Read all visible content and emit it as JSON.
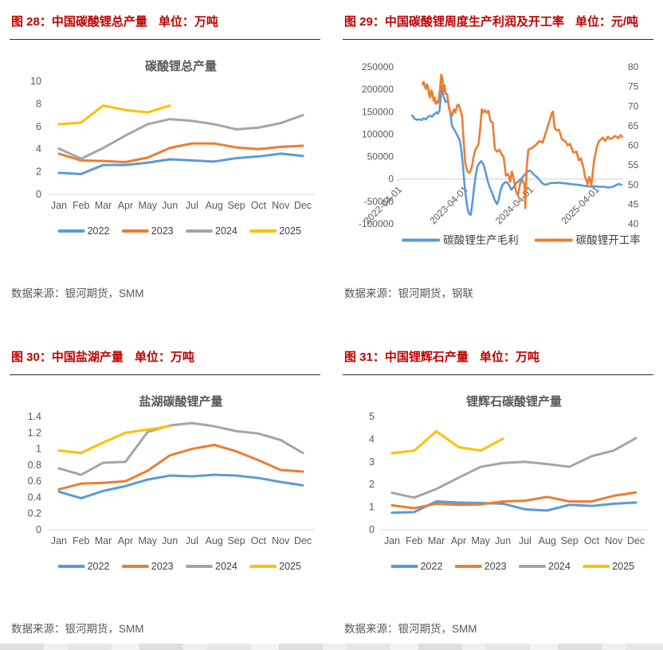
{
  "colors": {
    "accent_red": "#C00000",
    "axis_text": "#595959",
    "axis_line": "#D9D9D9",
    "legend_text": "#404040",
    "series": {
      "2022": "#5B9BD5",
      "2023": "#ED7D31",
      "2024": "#A5A5A5",
      "2025": "#FFC000",
      "profit": "#5B9BD5",
      "rate": "#ED7D31"
    }
  },
  "panels": [
    {
      "heading": "图 28：中国碳酸锂总产量",
      "unit": "单位：万吨",
      "source": "数据来源：银河期货，SMM"
    },
    {
      "heading": "图 29：中国碳酸锂周度生产利润及开工率",
      "unit": "单位：元/吨",
      "source": "数据来源：银河期货，钢联"
    },
    {
      "heading": "图 30：中国盐湖产量",
      "unit": "单位：万吨",
      "source": "数据来源：银河期货，SMM"
    },
    {
      "heading": "图 31：中国锂辉石产量",
      "unit": "单位：万吨",
      "source": "数据来源：银河期货，SMM"
    }
  ],
  "chart_data": [
    {
      "type": "line",
      "title": "碳酸锂总产量",
      "categories": [
        "Jan",
        "Feb",
        "Mar",
        "Apr",
        "May",
        "Jun",
        "Jul",
        "Aug",
        "Sep",
        "Oct",
        "Nov",
        "Dec"
      ],
      "ylim": [
        0,
        10
      ],
      "ytick_step": 2,
      "grid": false,
      "legend_position": "bottom",
      "series": [
        {
          "name": "2022",
          "color_key": "2022",
          "values": [
            1.9,
            1.8,
            2.6,
            2.6,
            2.8,
            3.1,
            3.0,
            2.9,
            3.2,
            3.35,
            3.6,
            3.4
          ]
        },
        {
          "name": "2023",
          "color_key": "2023",
          "values": [
            3.6,
            3.0,
            2.95,
            2.85,
            3.25,
            4.1,
            4.5,
            4.5,
            4.15,
            4.0,
            4.2,
            4.3
          ]
        },
        {
          "name": "2024",
          "color_key": "2024",
          "values": [
            4.05,
            3.15,
            4.1,
            5.2,
            6.2,
            6.65,
            6.5,
            6.2,
            5.75,
            5.9,
            6.3,
            7.0
          ]
        },
        {
          "name": "2025",
          "color_key": "2025",
          "values": [
            6.2,
            6.35,
            7.85,
            7.45,
            7.25,
            7.85
          ]
        }
      ]
    },
    {
      "type": "line",
      "dual_axis": true,
      "left_ylim": [
        -100000,
        250000
      ],
      "left_step": 50000,
      "right_ylim": [
        40,
        80
      ],
      "right_step": 5,
      "x_tick_labels": [
        "2022-04-01",
        "2023-04-01",
        "2024-04-01",
        "2025-04-01"
      ],
      "x_tick_months": [
        0,
        12,
        24,
        36
      ],
      "x_range_months": [
        0,
        41
      ],
      "grid": false,
      "legend_position": "bottom",
      "series": [
        {
          "name": "碳酸锂生产毛利",
          "axis": "left",
          "color_key": "profit",
          "points": [
            [
              2.5,
              142000
            ],
            [
              3.0,
              134000
            ],
            [
              3.4,
              132000
            ],
            [
              3.8,
              133000
            ],
            [
              4.2,
              131500
            ],
            [
              4.6,
              135500
            ],
            [
              5.0,
              133000
            ],
            [
              5.4,
              138500
            ],
            [
              5.8,
              141500
            ],
            [
              6.1,
              139000
            ],
            [
              6.5,
              144000
            ],
            [
              6.9,
              148500
            ],
            [
              7.2,
              146000
            ],
            [
              7.5,
              153000
            ],
            [
              7.9,
              207000
            ],
            [
              8.2,
              186000
            ],
            [
              8.6,
              172000
            ],
            [
              9.0,
              175000
            ],
            [
              9.4,
              152000
            ],
            [
              9.8,
              118000
            ],
            [
              10.3,
              108000
            ],
            [
              10.8,
              96000
            ],
            [
              11.2,
              86000
            ],
            [
              11.5,
              62000
            ],
            [
              11.8,
              25000
            ],
            [
              12.0,
              -5000
            ],
            [
              12.3,
              -40000
            ],
            [
              12.6,
              -65000
            ],
            [
              12.9,
              -78000
            ],
            [
              13.2,
              -80000
            ],
            [
              13.5,
              -52000
            ],
            [
              13.8,
              -20000
            ],
            [
              14.1,
              8000
            ],
            [
              14.4,
              28000
            ],
            [
              14.8,
              36000
            ],
            [
              15.1,
              40000
            ],
            [
              15.5,
              33000
            ],
            [
              15.9,
              15000
            ],
            [
              16.3,
              -5000
            ],
            [
              16.7,
              -20000
            ],
            [
              17.2,
              -35000
            ],
            [
              17.6,
              -48000
            ],
            [
              18.0,
              -56000
            ],
            [
              18.3,
              -46000
            ],
            [
              18.6,
              -26000
            ],
            [
              19.0,
              -13000
            ],
            [
              19.4,
              -8000
            ],
            [
              19.8,
              -7000
            ],
            [
              20.2,
              -14000
            ],
            [
              20.6,
              -24000
            ],
            [
              21.0,
              -18000
            ],
            [
              21.5,
              -9000
            ],
            [
              22.0,
              -4000
            ],
            [
              22.5,
              2000
            ],
            [
              23.0,
              9000
            ],
            [
              23.5,
              16000
            ],
            [
              24.0,
              19000
            ],
            [
              24.4,
              14000
            ],
            [
              24.8,
              9000
            ],
            [
              25.3,
              4000
            ],
            [
              25.8,
              -3000
            ],
            [
              26.3,
              -10000
            ],
            [
              26.8,
              -13000
            ],
            [
              27.3,
              -11000
            ],
            [
              27.8,
              -9000
            ],
            [
              28.3,
              -8500
            ],
            [
              28.8,
              -9000
            ],
            [
              29.3,
              -8000
            ],
            [
              29.8,
              -9000
            ],
            [
              30.3,
              -10000
            ],
            [
              30.8,
              -10000
            ],
            [
              31.3,
              -11000
            ],
            [
              31.8,
              -12000
            ],
            [
              32.3,
              -12500
            ],
            [
              32.8,
              -13000
            ],
            [
              33.3,
              -14000
            ],
            [
              33.8,
              -15000
            ],
            [
              34.3,
              -16000
            ],
            [
              34.8,
              -16500
            ],
            [
              35.3,
              -17000
            ],
            [
              35.8,
              -16000
            ],
            [
              36.3,
              -17000
            ],
            [
              36.8,
              -17500
            ],
            [
              37.3,
              -17000
            ],
            [
              37.8,
              -18000
            ],
            [
              38.3,
              -19000
            ],
            [
              38.8,
              -18000
            ],
            [
              39.3,
              -16500
            ],
            [
              39.8,
              -13000
            ],
            [
              40.3,
              -11000
            ],
            [
              40.7,
              -13000
            ]
          ]
        },
        {
          "name": "碳酸锂开工率",
          "axis": "right",
          "color_key": "rate",
          "points": [
            [
              4.4,
              75.6
            ],
            [
              4.6,
              76.2
            ],
            [
              4.8,
              75.0
            ],
            [
              5.0,
              74.4
            ],
            [
              5.2,
              75.6
            ],
            [
              5.4,
              74.8
            ],
            [
              5.6,
              73.0
            ],
            [
              5.8,
              72.2
            ],
            [
              6.0,
              74.0
            ],
            [
              6.2,
              73.4
            ],
            [
              6.4,
              71.4
            ],
            [
              6.6,
              72.2
            ],
            [
              6.8,
              70.6
            ],
            [
              7.0,
              71.2
            ],
            [
              7.2,
              70.8
            ],
            [
              7.4,
              72.4
            ],
            [
              7.6,
              74.6
            ],
            [
              7.8,
              78.0
            ],
            [
              8.0,
              77.2
            ],
            [
              8.2,
              73.8
            ],
            [
              8.4,
              75.4
            ],
            [
              8.6,
              73.2
            ],
            [
              8.9,
              73.0
            ],
            [
              9.2,
              69.6
            ],
            [
              9.5,
              68.4
            ],
            [
              9.8,
              67.6
            ],
            [
              10.1,
              69.2
            ],
            [
              10.4,
              68.4
            ],
            [
              10.7,
              70.2
            ],
            [
              11.0,
              70.4
            ],
            [
              11.3,
              69.0
            ],
            [
              11.6,
              67.6
            ],
            [
              11.9,
              61.0
            ],
            [
              12.2,
              55.5
            ],
            [
              12.5,
              53.7
            ],
            [
              12.8,
              53.0
            ],
            [
              13.1,
              53.3
            ],
            [
              13.4,
              54.5
            ],
            [
              13.7,
              57.0
            ],
            [
              14.0,
              58.8
            ],
            [
              14.3,
              59.5
            ],
            [
              14.6,
              60.2
            ],
            [
              14.9,
              64.0
            ],
            [
              15.2,
              69.2
            ],
            [
              15.5,
              68.4
            ],
            [
              15.8,
              69.0
            ],
            [
              16.1,
              68.3
            ],
            [
              16.4,
              68.8
            ],
            [
              16.8,
              66.2
            ],
            [
              17.2,
              65.8
            ],
            [
              17.6,
              59.0
            ],
            [
              18.0,
              58.4
            ],
            [
              18.4,
              58.9
            ],
            [
              18.8,
              57.8
            ],
            [
              19.2,
              57.0
            ],
            [
              19.6,
              52.3
            ],
            [
              20.0,
              52.7
            ],
            [
              20.4,
              50.7
            ],
            [
              20.7,
              53.3
            ],
            [
              21.0,
              51.8
            ],
            [
              21.4,
              48.5
            ],
            [
              21.8,
              47.2
            ],
            [
              22.2,
              50.3
            ],
            [
              22.6,
              51.2
            ],
            [
              23.0,
              50.0
            ],
            [
              23.15,
              44.0
            ],
            [
              23.4,
              54.4
            ],
            [
              23.7,
              58.9
            ],
            [
              24.3,
              59.3
            ],
            [
              25.0,
              60.0
            ],
            [
              25.7,
              61.1
            ],
            [
              26.3,
              60.7
            ],
            [
              26.9,
              63.3
            ],
            [
              27.5,
              66.0
            ],
            [
              28.0,
              68.3
            ],
            [
              28.2,
              68.6
            ],
            [
              28.5,
              64.4
            ],
            [
              28.9,
              63.8
            ],
            [
              29.3,
              64.0
            ],
            [
              29.8,
              61.6
            ],
            [
              30.4,
              61.1
            ],
            [
              30.9,
              60.0
            ],
            [
              31.3,
              60.4
            ],
            [
              31.9,
              58.2
            ],
            [
              32.5,
              58.4
            ],
            [
              32.9,
              56.2
            ],
            [
              33.3,
              56.7
            ],
            [
              33.8,
              54.0
            ],
            [
              34.0,
              52.2
            ],
            [
              34.3,
              51.1
            ],
            [
              34.5,
              50.0
            ],
            [
              34.8,
              52.0
            ],
            [
              35.2,
              49.8
            ],
            [
              35.7,
              56.2
            ],
            [
              36.2,
              59.6
            ],
            [
              36.6,
              61.1
            ],
            [
              37.0,
              61.6
            ],
            [
              37.3,
              62.0
            ],
            [
              37.7,
              61.1
            ],
            [
              38.2,
              62.2
            ],
            [
              38.7,
              61.6
            ],
            [
              39.1,
              62.0
            ],
            [
              39.6,
              62.4
            ],
            [
              40.1,
              61.8
            ],
            [
              40.5,
              62.6
            ],
            [
              40.8,
              62.2
            ]
          ]
        }
      ]
    },
    {
      "type": "line",
      "title": "盐湖碳酸锂产量",
      "categories": [
        "Jan",
        "Feb",
        "Mar",
        "Apr",
        "May",
        "Jun",
        "Jul",
        "Aug",
        "Sep",
        "Oct",
        "Nov",
        "Dec"
      ],
      "ylim": [
        0,
        1.4
      ],
      "ytick_step": 0.2,
      "grid": false,
      "legend_position": "bottom",
      "series": [
        {
          "name": "2022",
          "color_key": "2022",
          "values": [
            0.47,
            0.39,
            0.48,
            0.54,
            0.62,
            0.67,
            0.66,
            0.68,
            0.67,
            0.64,
            0.59,
            0.55
          ]
        },
        {
          "name": "2023",
          "color_key": "2023",
          "values": [
            0.5,
            0.57,
            0.58,
            0.6,
            0.73,
            0.92,
            1.0,
            1.05,
            0.97,
            0.86,
            0.74,
            0.72
          ]
        },
        {
          "name": "2024",
          "color_key": "2024",
          "values": [
            0.76,
            0.68,
            0.83,
            0.84,
            1.21,
            1.29,
            1.32,
            1.28,
            1.22,
            1.19,
            1.11,
            0.95
          ]
        },
        {
          "name": "2025",
          "color_key": "2025",
          "values": [
            0.98,
            0.95,
            1.08,
            1.2,
            1.24,
            1.28
          ]
        }
      ]
    },
    {
      "type": "line",
      "title": "锂辉石碳酸锂产量",
      "categories": [
        "Jan",
        "Feb",
        "Mar",
        "Apr",
        "May",
        "Jun",
        "Jul",
        "Aug",
        "Sep",
        "Oct",
        "Nov",
        "Dec"
      ],
      "ylim": [
        0,
        5
      ],
      "ytick_step": 1,
      "grid": false,
      "legend_position": "bottom",
      "series": [
        {
          "name": "2022",
          "color_key": "2022",
          "values": [
            0.75,
            0.78,
            1.25,
            1.2,
            1.18,
            1.15,
            0.9,
            0.85,
            1.1,
            1.05,
            1.15,
            1.2
          ]
        },
        {
          "name": "2023",
          "color_key": "2023",
          "values": [
            1.08,
            0.95,
            1.15,
            1.1,
            1.12,
            1.25,
            1.28,
            1.45,
            1.25,
            1.25,
            1.5,
            1.65
          ]
        },
        {
          "name": "2024",
          "color_key": "2024",
          "values": [
            1.63,
            1.42,
            1.8,
            2.3,
            2.78,
            2.95,
            3.0,
            2.9,
            2.78,
            3.25,
            3.5,
            4.05
          ]
        },
        {
          "name": "2025",
          "color_key": "2025",
          "values": [
            3.38,
            3.5,
            4.35,
            3.65,
            3.5,
            4.02
          ]
        }
      ]
    }
  ]
}
